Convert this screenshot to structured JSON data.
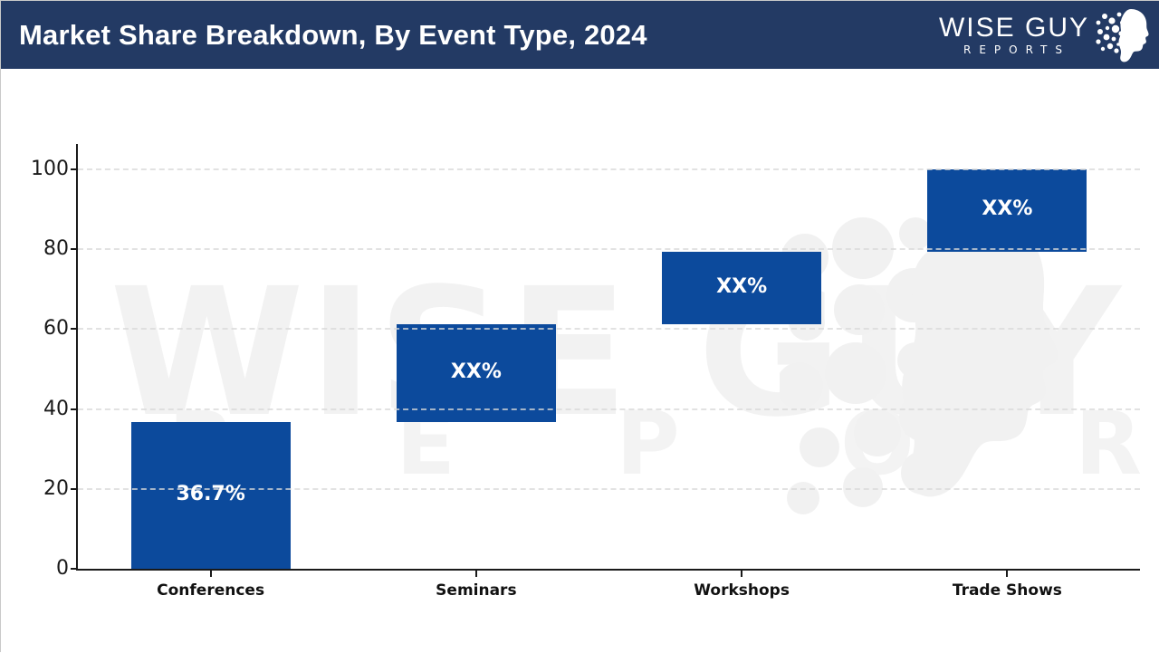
{
  "header": {
    "title": "Market Share Breakdown, By Event Type, 2024",
    "bg_color": "#233a64",
    "logo": {
      "wordmark": "WISE GUY",
      "subtitle": "REPORTS"
    }
  },
  "watermark": {
    "line1": "WISE GUY",
    "line2": "R E P O R T S"
  },
  "chart_data": {
    "type": "bar",
    "subtype": "waterfall",
    "title": "Market Share Breakdown, By Event Type, 2024",
    "categories": [
      "Conferences",
      "Seminars",
      "Workshops",
      "Trade Shows"
    ],
    "segments": [
      {
        "category": "Conferences",
        "start": 0,
        "end": 36.7,
        "label": "36.7%"
      },
      {
        "category": "Seminars",
        "start": 36.7,
        "end": 61.2,
        "label": "XX%"
      },
      {
        "category": "Workshops",
        "start": 61.2,
        "end": 79.4,
        "label": "XX%"
      },
      {
        "category": "Trade Shows",
        "start": 79.4,
        "end": 100,
        "label": "XX%"
      }
    ],
    "ylim": [
      0,
      100
    ],
    "yticks": [
      0,
      20,
      40,
      60,
      80,
      100
    ],
    "ytick_labels": [
      "0",
      "20",
      "40",
      "60",
      "80",
      "100"
    ],
    "xlabel": "",
    "ylabel": "",
    "grid": "horizontal-dashed",
    "legend": "none",
    "bar_color": "#0c4a9c",
    "bar_label_color": "#ffffff",
    "axis_color": "#1a1a1a",
    "gridline_color": "#d9d9d9"
  }
}
